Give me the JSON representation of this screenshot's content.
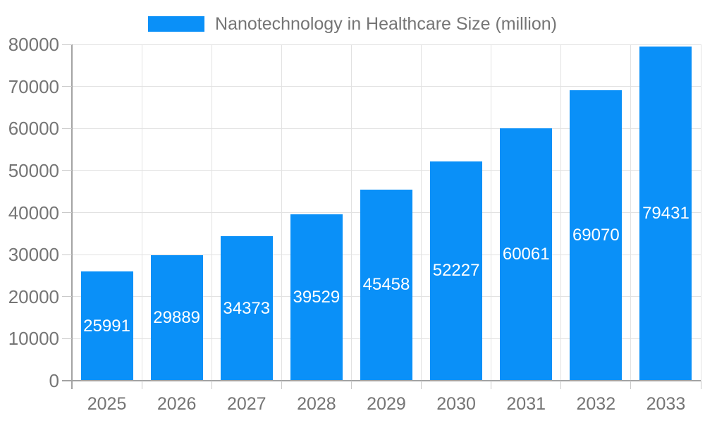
{
  "chart_data": {
    "type": "bar",
    "title": "Nanotechnology in Healthcare Size (million)",
    "legend_label": "Nanotechnology in Healthcare Size (million)",
    "legend_position": "top-center",
    "categories": [
      "2025",
      "2026",
      "2027",
      "2028",
      "2029",
      "2030",
      "2031",
      "2032",
      "2033"
    ],
    "values": [
      25991,
      29889,
      34373,
      39529,
      45458,
      52227,
      60061,
      69070,
      79431
    ],
    "xlabel": "",
    "ylabel": "",
    "ylim": [
      0,
      80000
    ],
    "yticks": [
      0,
      10000,
      20000,
      30000,
      40000,
      50000,
      60000,
      70000,
      80000
    ],
    "grid": true,
    "bar_labels_inside": true,
    "colors": {
      "bar": "#0a90f8",
      "bar_label": "#ffffff",
      "axis_text": "#757575",
      "grid_line": "#e2e2e2",
      "tick_line": "#c9c9c9",
      "axis_line": "#a3a3a3",
      "background": "#ffffff"
    }
  }
}
